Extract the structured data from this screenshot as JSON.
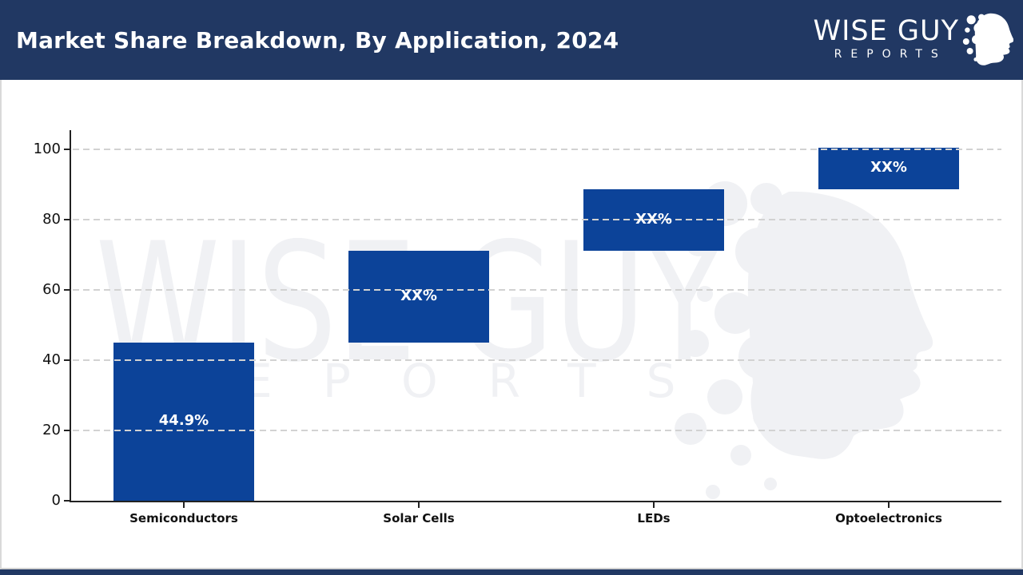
{
  "header": {
    "title": "Market Share Breakdown, By Application, 2024",
    "brand": {
      "line1": "WISE GUY",
      "line2": "REPORTS"
    }
  },
  "watermark": {
    "line1": "WISE GUY",
    "line2": "REPORTS"
  },
  "chart_data": {
    "type": "bar",
    "subtype": "waterfall",
    "title": "Market Share Breakdown, By Application, 2024",
    "categories": [
      "Semiconductors",
      "Solar Cells",
      "LEDs",
      "Optoelectronics"
    ],
    "segments": [
      {
        "category": "Semiconductors",
        "start": 0,
        "end": 44.9,
        "value": 44.9,
        "label": "44.9%"
      },
      {
        "category": "Solar Cells",
        "start": 44.9,
        "end": 71.1,
        "value": 26.2,
        "label": "XX%"
      },
      {
        "category": "LEDs",
        "start": 71.1,
        "end": 88.6,
        "value": 17.5,
        "label": "XX%"
      },
      {
        "category": "Optoelectronics",
        "start": 88.6,
        "end": 100.5,
        "value": 11.9,
        "label": "XX%"
      }
    ],
    "yticks": [
      0,
      20,
      40,
      60,
      80,
      100
    ],
    "ylim": [
      0,
      105
    ],
    "xlabel": "",
    "ylabel": "",
    "grid": "horizontal-dashed",
    "legend": "none",
    "bar_color": "#0c4399",
    "bar_label_color": "#ffffff"
  },
  "colors": {
    "header_bg": "#213863",
    "footer_bg": "#213863",
    "bar": "#0c4399",
    "grid": "#d2d2d2",
    "axis": "#222222",
    "watermark": "#f0f1f4",
    "frame_border": "#d9d9d9"
  }
}
